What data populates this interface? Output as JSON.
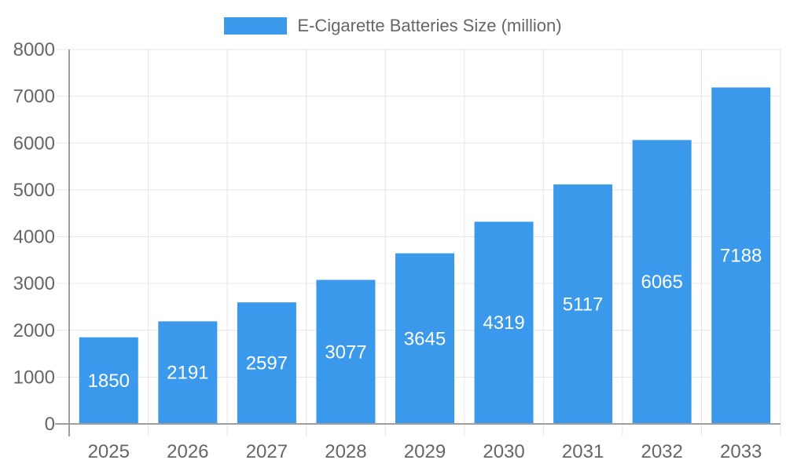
{
  "chart_data": {
    "type": "bar",
    "title": "E-Cigarette Batteries Size (million)",
    "categories": [
      "2025",
      "2026",
      "2027",
      "2028",
      "2029",
      "2030",
      "2031",
      "2032",
      "2033"
    ],
    "series": [
      {
        "name": "E-Cigarette Batteries Size (million)",
        "values": [
          1850,
          2191,
          2597,
          3077,
          3645,
          4319,
          5117,
          6065,
          7188
        ],
        "color": "#3B99EC"
      }
    ],
    "xlabel": "",
    "ylabel": "",
    "ylim": [
      0,
      8000
    ],
    "y_ticks": [
      0,
      1000,
      2000,
      3000,
      4000,
      5000,
      6000,
      7000,
      8000
    ],
    "grid": true,
    "legend_position": "top",
    "value_labels_shown": true,
    "value_label_color": "#FFFFFF",
    "grid_color": "#E6E6E6",
    "axis_color": "#9E9E9E",
    "tick_label_color": "#666666",
    "legend_text_color": "#666666"
  }
}
